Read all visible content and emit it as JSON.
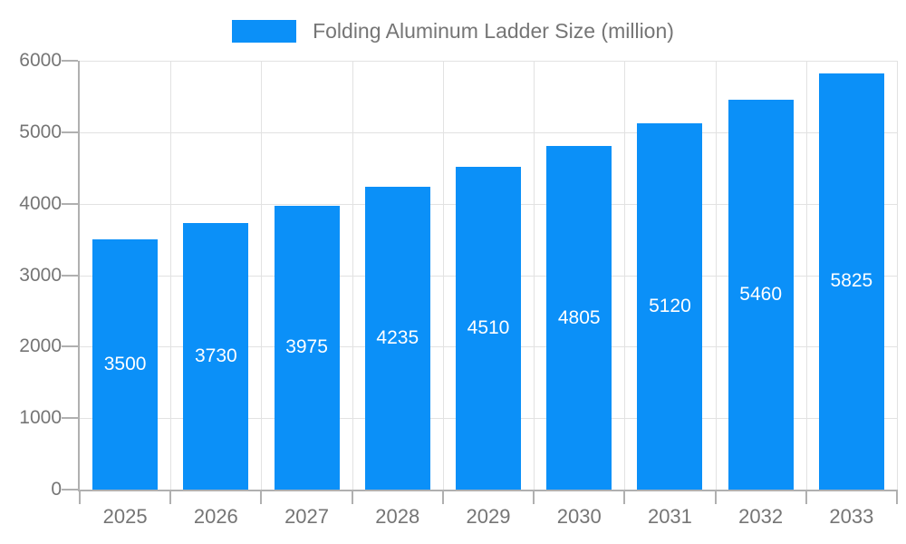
{
  "legend": {
    "label": "Folding Aluminum Ladder Size (million)"
  },
  "colors": {
    "bar": "#0b90f8",
    "grid": "#e2e2e2",
    "axis": "#b0b0b0",
    "text": "#757575",
    "bar_label": "#ffffff",
    "background": "#ffffff"
  },
  "chart_data": {
    "type": "bar",
    "title": "",
    "xlabel": "",
    "ylabel": "",
    "categories": [
      "2025",
      "2026",
      "2027",
      "2028",
      "2029",
      "2030",
      "2031",
      "2032",
      "2033"
    ],
    "values": [
      3500,
      3730,
      3975,
      4235,
      4510,
      4805,
      5120,
      5460,
      5825
    ],
    "series_name": "Folding Aluminum Ladder Size (million)",
    "data_labels_visible": true,
    "data_label_position": "inside-center",
    "ylim": [
      0,
      6000
    ],
    "yticks": [
      0,
      1000,
      2000,
      3000,
      4000,
      5000,
      6000
    ],
    "grid": true,
    "legend_position": "top-center",
    "bar_width_ratio": 0.72
  }
}
